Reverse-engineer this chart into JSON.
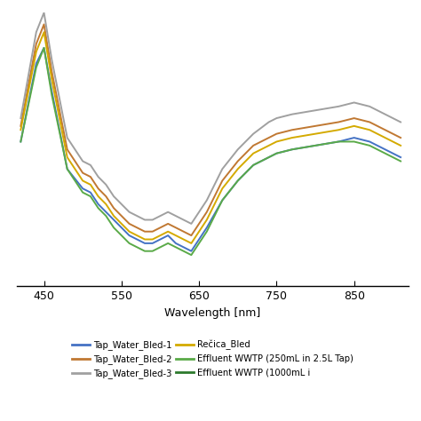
{
  "xlabel": "Wavelength [nm]",
  "xticks": [
    450,
    550,
    650,
    750,
    850
  ],
  "xlim": [
    415,
    920
  ],
  "ylim": [
    0.15,
    0.85
  ],
  "series": [
    {
      "label": "Tap_Water_Bled-1",
      "color": "#4472c4",
      "x": [
        420,
        440,
        450,
        460,
        480,
        500,
        510,
        520,
        530,
        540,
        550,
        560,
        570,
        580,
        590,
        600,
        610,
        620,
        630,
        640,
        650,
        660,
        680,
        700,
        720,
        740,
        750,
        770,
        800,
        830,
        850,
        870,
        890,
        910
      ],
      "y": [
        0.52,
        0.72,
        0.76,
        0.65,
        0.45,
        0.4,
        0.39,
        0.36,
        0.34,
        0.32,
        0.3,
        0.28,
        0.27,
        0.26,
        0.26,
        0.27,
        0.28,
        0.26,
        0.25,
        0.24,
        0.27,
        0.3,
        0.37,
        0.42,
        0.46,
        0.48,
        0.49,
        0.5,
        0.51,
        0.52,
        0.53,
        0.52,
        0.5,
        0.48
      ]
    },
    {
      "label": "Tap_Water_Bled-2",
      "color": "#c07832",
      "x": [
        420,
        440,
        450,
        460,
        480,
        500,
        510,
        520,
        530,
        540,
        550,
        560,
        570,
        580,
        590,
        600,
        610,
        620,
        630,
        640,
        650,
        660,
        680,
        700,
        720,
        740,
        750,
        770,
        800,
        830,
        850,
        870,
        890,
        910
      ],
      "y": [
        0.56,
        0.77,
        0.82,
        0.7,
        0.5,
        0.44,
        0.43,
        0.4,
        0.38,
        0.35,
        0.33,
        0.31,
        0.3,
        0.29,
        0.29,
        0.3,
        0.31,
        0.3,
        0.29,
        0.28,
        0.31,
        0.34,
        0.42,
        0.47,
        0.51,
        0.53,
        0.54,
        0.55,
        0.56,
        0.57,
        0.58,
        0.57,
        0.55,
        0.53
      ]
    },
    {
      "label": "Tap_Water_Bled-3",
      "color": "#a0a0a0",
      "x": [
        420,
        440,
        450,
        460,
        480,
        500,
        510,
        520,
        530,
        540,
        550,
        560,
        570,
        580,
        590,
        600,
        610,
        620,
        630,
        640,
        650,
        660,
        680,
        700,
        720,
        740,
        750,
        770,
        800,
        830,
        850,
        870,
        890,
        910
      ],
      "y": [
        0.58,
        0.8,
        0.85,
        0.73,
        0.53,
        0.47,
        0.46,
        0.43,
        0.41,
        0.38,
        0.36,
        0.34,
        0.33,
        0.32,
        0.32,
        0.33,
        0.34,
        0.33,
        0.32,
        0.31,
        0.34,
        0.37,
        0.45,
        0.5,
        0.54,
        0.57,
        0.58,
        0.59,
        0.6,
        0.61,
        0.62,
        0.61,
        0.59,
        0.57
      ]
    },
    {
      "label": "Rečica_Bled",
      "color": "#d4aa00",
      "x": [
        420,
        440,
        450,
        460,
        480,
        500,
        510,
        520,
        530,
        540,
        550,
        560,
        570,
        580,
        590,
        600,
        610,
        620,
        630,
        640,
        650,
        660,
        680,
        700,
        720,
        740,
        750,
        770,
        800,
        830,
        850,
        870,
        890,
        910
      ],
      "y": [
        0.55,
        0.75,
        0.8,
        0.68,
        0.48,
        0.42,
        0.41,
        0.38,
        0.36,
        0.33,
        0.31,
        0.29,
        0.28,
        0.27,
        0.27,
        0.28,
        0.29,
        0.28,
        0.27,
        0.26,
        0.29,
        0.32,
        0.4,
        0.45,
        0.49,
        0.51,
        0.52,
        0.53,
        0.54,
        0.55,
        0.56,
        0.55,
        0.53,
        0.51
      ]
    },
    {
      "label": "Effluent WWTP (250mL in 2.5L Tap)",
      "color": "#5aaa48",
      "x": [
        420,
        440,
        450,
        460,
        480,
        500,
        510,
        520,
        530,
        540,
        550,
        560,
        570,
        580,
        590,
        600,
        610,
        620,
        630,
        640,
        650,
        660,
        680,
        700,
        720,
        740,
        750,
        770,
        800,
        830,
        850,
        870,
        890,
        910
      ],
      "y": [
        0.52,
        0.71,
        0.76,
        0.64,
        0.45,
        0.39,
        0.38,
        0.35,
        0.33,
        0.3,
        0.28,
        0.26,
        0.25,
        0.24,
        0.24,
        0.25,
        0.26,
        0.25,
        0.24,
        0.23,
        0.26,
        0.29,
        0.37,
        0.42,
        0.46,
        0.48,
        0.49,
        0.5,
        0.51,
        0.52,
        0.52,
        0.51,
        0.49,
        0.47
      ]
    }
  ],
  "legend_left": [
    {
      "label": "Tap_Water_Bled-1",
      "color": "#4472c4"
    },
    {
      "label": "Tap_Water_Bled-3",
      "color": "#a0a0a0"
    },
    {
      "label": "Effluent WWTP (250mL in 2.5L Tap)",
      "color": "#5aaa48"
    }
  ],
  "legend_right": [
    {
      "label": "Tap_Water_Bled-2",
      "color": "#c07832"
    },
    {
      "label": "Rečica_Bled",
      "color": "#d4aa00"
    },
    {
      "label": "Effluent WWTP (1000mL i",
      "color": "#2d7a2d"
    }
  ],
  "background_color": "#ffffff",
  "font_size": 9,
  "linewidth": 1.4
}
